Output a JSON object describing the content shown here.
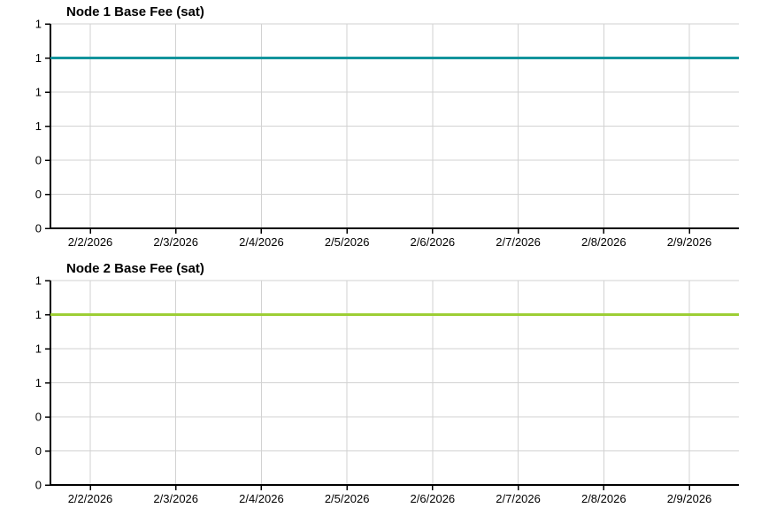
{
  "chart_data": [
    {
      "type": "line",
      "title": "Node 1 Base Fee (sat)",
      "x": [
        "2/2/2026",
        "2/3/2026",
        "2/4/2026",
        "2/5/2026",
        "2/6/2026",
        "2/7/2026",
        "2/8/2026",
        "2/9/2026"
      ],
      "series": [
        {
          "name": "Node 1 Base Fee",
          "values": [
            1,
            1,
            1,
            1,
            1,
            1,
            1,
            1
          ]
        }
      ],
      "xlabel": "",
      "ylabel": "",
      "ylim": [
        0,
        1.2
      ],
      "y_ticks": {
        "values": [
          1.2,
          1.0,
          0.8,
          0.6,
          0.4,
          0.2,
          0
        ],
        "labels": [
          "1",
          "1",
          "1",
          "1",
          "0",
          "0",
          "0"
        ]
      },
      "grid": true,
      "legend": "none",
      "line_color": "#13949C"
    },
    {
      "type": "line",
      "title": "Node 2 Base Fee (sat)",
      "x": [
        "2/2/2026",
        "2/3/2026",
        "2/4/2026",
        "2/5/2026",
        "2/6/2026",
        "2/7/2026",
        "2/8/2026",
        "2/9/2026"
      ],
      "series": [
        {
          "name": "Node 2 Base Fee",
          "values": [
            1,
            1,
            1,
            1,
            1,
            1,
            1,
            1
          ]
        }
      ],
      "xlabel": "",
      "ylabel": "",
      "ylim": [
        0,
        1.2
      ],
      "y_ticks": {
        "values": [
          1.2,
          1.0,
          0.8,
          0.6,
          0.4,
          0.2,
          0
        ],
        "labels": [
          "1",
          "1",
          "1",
          "1",
          "0",
          "0",
          "0"
        ]
      },
      "grid": true,
      "legend": "none",
      "line_color": "#9DCE35"
    }
  ],
  "colors": {
    "grid": "#d2d2d2",
    "axis": "#000000",
    "text": "#000000",
    "node1_line": "#13949C",
    "node2_line": "#9DCE35"
  }
}
